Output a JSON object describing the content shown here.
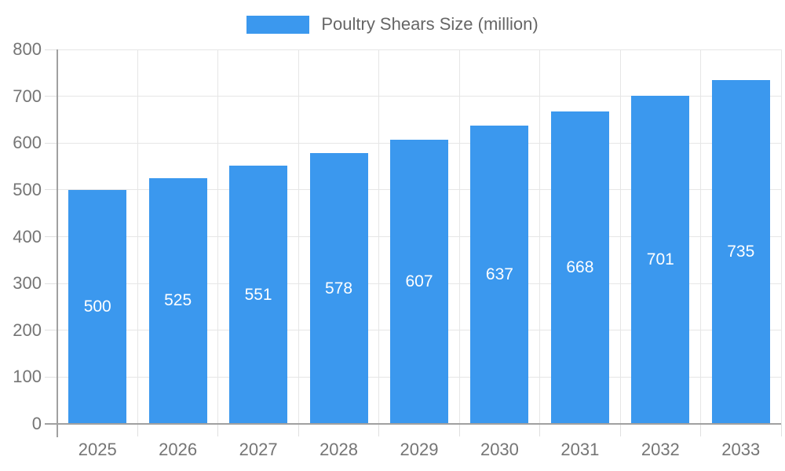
{
  "legend": {
    "label": "Poultry Shears Size (million)"
  },
  "chart_data": {
    "type": "bar",
    "title": "Poultry Shears Size (million)",
    "categories": [
      "2025",
      "2026",
      "2027",
      "2028",
      "2029",
      "2030",
      "2031",
      "2032",
      "2033"
    ],
    "series": [
      {
        "name": "Poultry Shears Size (million)",
        "values": [
          500,
          525,
          551,
          578,
          607,
          637,
          668,
          701,
          735
        ]
      }
    ],
    "show_bar_labels": true,
    "xlabel": "",
    "ylabel": "",
    "ylim": [
      0,
      800
    ],
    "ytick_step": 100,
    "yticks": [
      0,
      100,
      200,
      300,
      400,
      500,
      600,
      700,
      800
    ],
    "grid": true,
    "legend_position": "top",
    "colors": {
      "bar": "#3b98ee",
      "bar_label_text": "#ffffff",
      "axis_line": "#a0a0a0",
      "gridline": "#e6e6e6",
      "tick": "#e0e0e0",
      "tick_label_text": "#757575",
      "legend_text": "#666666",
      "background": "#ffffff"
    }
  }
}
